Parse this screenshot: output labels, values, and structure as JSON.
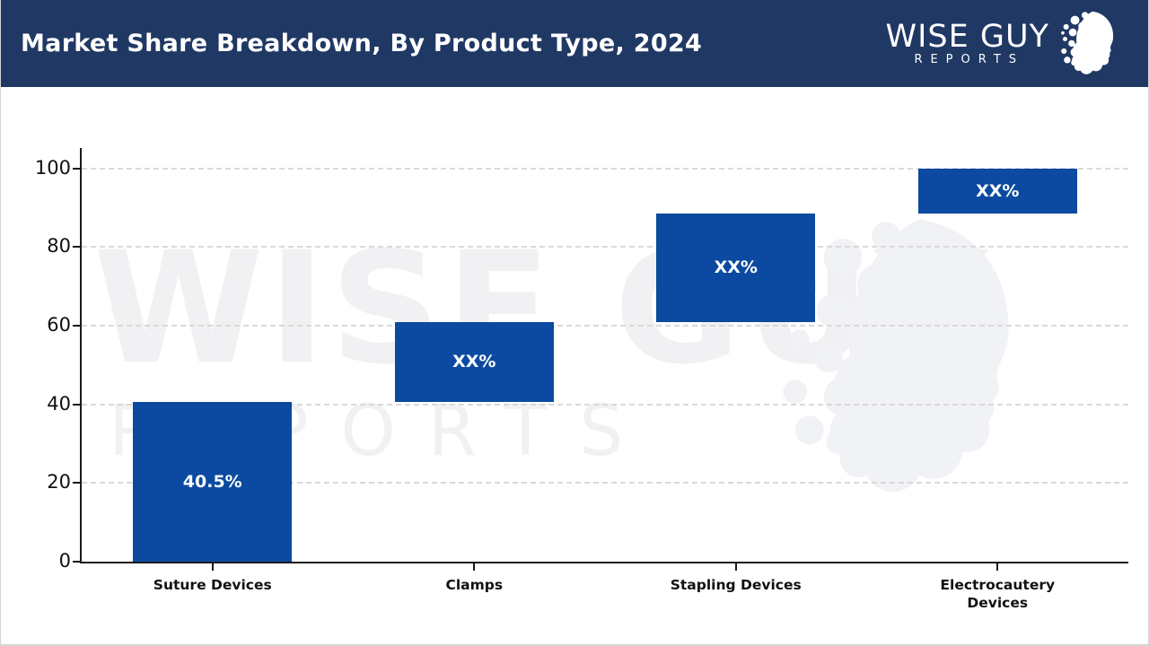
{
  "header": {
    "title": "Market Share Breakdown, By Product Type, 2024",
    "bg_color": "#203864",
    "logo": {
      "line1": "WISE GUY",
      "line2": "REPORTS"
    }
  },
  "watermark": {
    "line1": "WISE GUY",
    "line2": "REPORTS"
  },
  "chart_data": {
    "type": "bar",
    "subtype": "waterfall",
    "title": "Market Share Breakdown, By Product Type, 2024",
    "xlabel": "",
    "ylabel": "",
    "categories": [
      "Suture Devices",
      "Clamps",
      "Stapling Devices",
      "Electrocautery Devices"
    ],
    "segments": [
      {
        "category": "Suture Devices",
        "start": 0,
        "end": 40.5,
        "label": "40.5%"
      },
      {
        "category": "Clamps",
        "start": 40.5,
        "end": 61,
        "label": "XX%"
      },
      {
        "category": "Stapling Devices",
        "start": 61,
        "end": 88.5,
        "label": "XX%"
      },
      {
        "category": "Electrocautery Devices",
        "start": 88.5,
        "end": 100,
        "label": "XX%"
      }
    ],
    "y_ticks": [
      0,
      20,
      40,
      60,
      80,
      100
    ],
    "y_tick_labels": [
      "0",
      "20",
      "40",
      "60",
      "80",
      "100"
    ],
    "ylim": [
      0,
      105
    ],
    "grid": "horizontal-dashed",
    "legend": "none",
    "bar_color": "#0b4aa0",
    "bar_label_color": "#ffffff"
  }
}
